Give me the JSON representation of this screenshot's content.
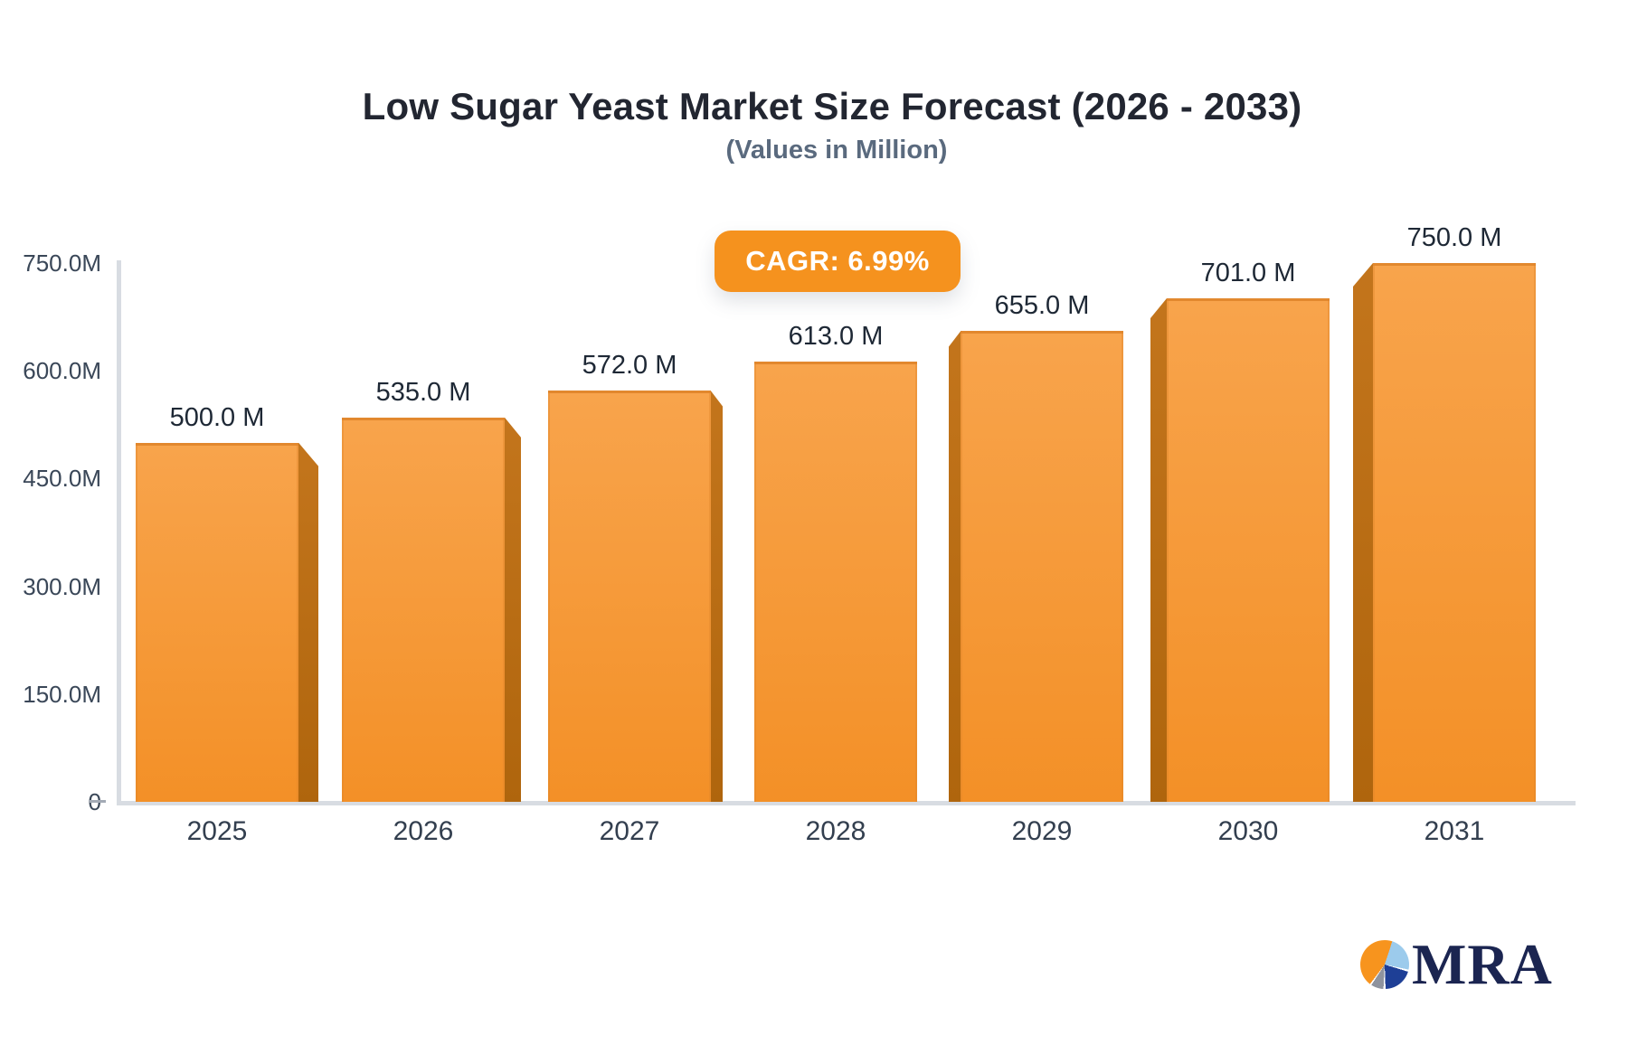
{
  "chart_data": {
    "type": "bar",
    "title": "Low Sugar Yeast Market Size Forecast (2026 - 2033)",
    "subtitle": "(Values in Million)",
    "cagr_badge": "CAGR: 6.99%",
    "categories": [
      "2025",
      "2026",
      "2027",
      "2028",
      "2029",
      "2030",
      "2031"
    ],
    "values": [
      500,
      535,
      572,
      613,
      655,
      701,
      750
    ],
    "bar_labels": [
      "500.0 M",
      "535.0 M",
      "572.0 M",
      "613.0 M",
      "655.0 M",
      "701.0 M",
      "750.0 M"
    ],
    "y_axis": {
      "min": 0,
      "max": 750,
      "ticks": [
        {
          "value": 750,
          "label": "750.0M"
        },
        {
          "value": 600,
          "label": "600.0M"
        },
        {
          "value": 450,
          "label": "450.0M"
        },
        {
          "value": 300,
          "label": "300.0M"
        },
        {
          "value": 150,
          "label": "150.0M"
        },
        {
          "value": 0,
          "label": "0"
        }
      ]
    },
    "xlabel": "",
    "ylabel": "",
    "grid": false,
    "legend": false,
    "colors": {
      "bar_top": "#F8A44C",
      "bar_bottom": "#F39027",
      "bar_side_top": "#C3751C",
      "bar_side_bottom": "#AF650D",
      "badge_bg": "#F5921E",
      "badge_text": "#FFFFFF",
      "axis_line": "#D8DCE2",
      "title_text": "#222631",
      "subtitle_text": "#5A6A7E",
      "tick_text": "#3A4758"
    }
  },
  "logo": {
    "text": "MRA",
    "icon": "pie-chart-icon",
    "text_color": "#1B2551",
    "pie_colors": {
      "orange": "#F7941E",
      "light_blue": "#9CCBEC",
      "navy": "#1E3F96",
      "gray": "#8E939E"
    }
  }
}
